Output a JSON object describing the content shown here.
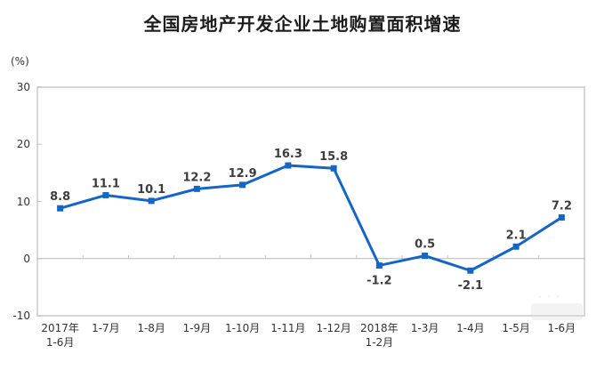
{
  "title": "全国房地产开发企业土地购置面积增速",
  "chart_data": {
    "type": "line",
    "title": "全国房地产开发企业土地购置面积增速",
    "ylabel": "(%)",
    "xlabel": "",
    "categories": [
      "2017年\n1-6月",
      "1-7月",
      "1-8月",
      "1-9月",
      "1-10月",
      "1-11月",
      "1-12月",
      "2018年\n1-2月",
      "1-3月",
      "1-4月",
      "1-5月",
      "1-6月"
    ],
    "values": [
      8.8,
      11.1,
      10.1,
      12.2,
      12.9,
      16.3,
      15.8,
      -1.2,
      0.5,
      -2.1,
      2.1,
      7.2
    ],
    "ylim": [
      -10,
      30
    ],
    "yticks": [
      30,
      20,
      10,
      0,
      -10
    ],
    "grid": false,
    "legend": "none",
    "marker": "square",
    "colors": {
      "line": "#1565C4",
      "data_label": "#3d3d3d",
      "axis_text": "#333333",
      "plot_border": "#d7d7d7",
      "zero_line": "#b9b9b9",
      "tick": "#c4c4c4"
    }
  }
}
